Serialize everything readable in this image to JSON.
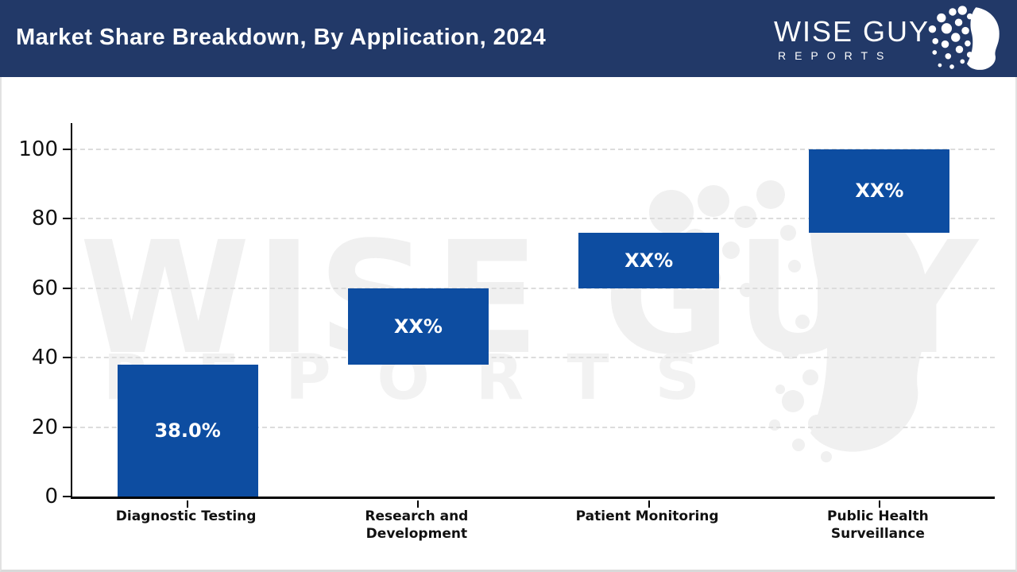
{
  "header": {
    "title": "Market Share Breakdown, By Application, 2024",
    "logo": {
      "name": "WISE GUY",
      "tagline": "REPORTS"
    }
  },
  "watermark": {
    "big_text": "WISE GUY",
    "small_text": "REPORTS"
  },
  "colors": {
    "header_bg": "#223968",
    "bar": "#0d4da1",
    "bar_label": "#ffffff",
    "axis": "#000000",
    "grid": "#dcdcdc",
    "tick_label": "#111111",
    "watermark": "#f0f0f0"
  },
  "chart_data": {
    "type": "bar",
    "variant": "waterfall",
    "title": "Market Share Breakdown, By Application, 2024",
    "categories": [
      "Diagnostic Testing",
      "Research and\nDevelopment",
      "Patient Monitoring",
      "Public Health\nSurveillance"
    ],
    "bars": [
      {
        "category": "Diagnostic Testing",
        "start": 0,
        "end": 38,
        "value_label": "38.0%"
      },
      {
        "category": "Research and Development",
        "start": 38,
        "end": 60,
        "value_label": "XX%"
      },
      {
        "category": "Patient Monitoring",
        "start": 60,
        "end": 76,
        "value_label": "XX%"
      },
      {
        "category": "Public Health Surveillance",
        "start": 76,
        "end": 100,
        "value_label": "XX%"
      }
    ],
    "xlabel": "",
    "ylabel": "",
    "ylim": [
      0,
      100
    ],
    "yticks": [
      0,
      20,
      40,
      60,
      80,
      100
    ],
    "grid": "horizontal-dashed",
    "legend": "none"
  }
}
